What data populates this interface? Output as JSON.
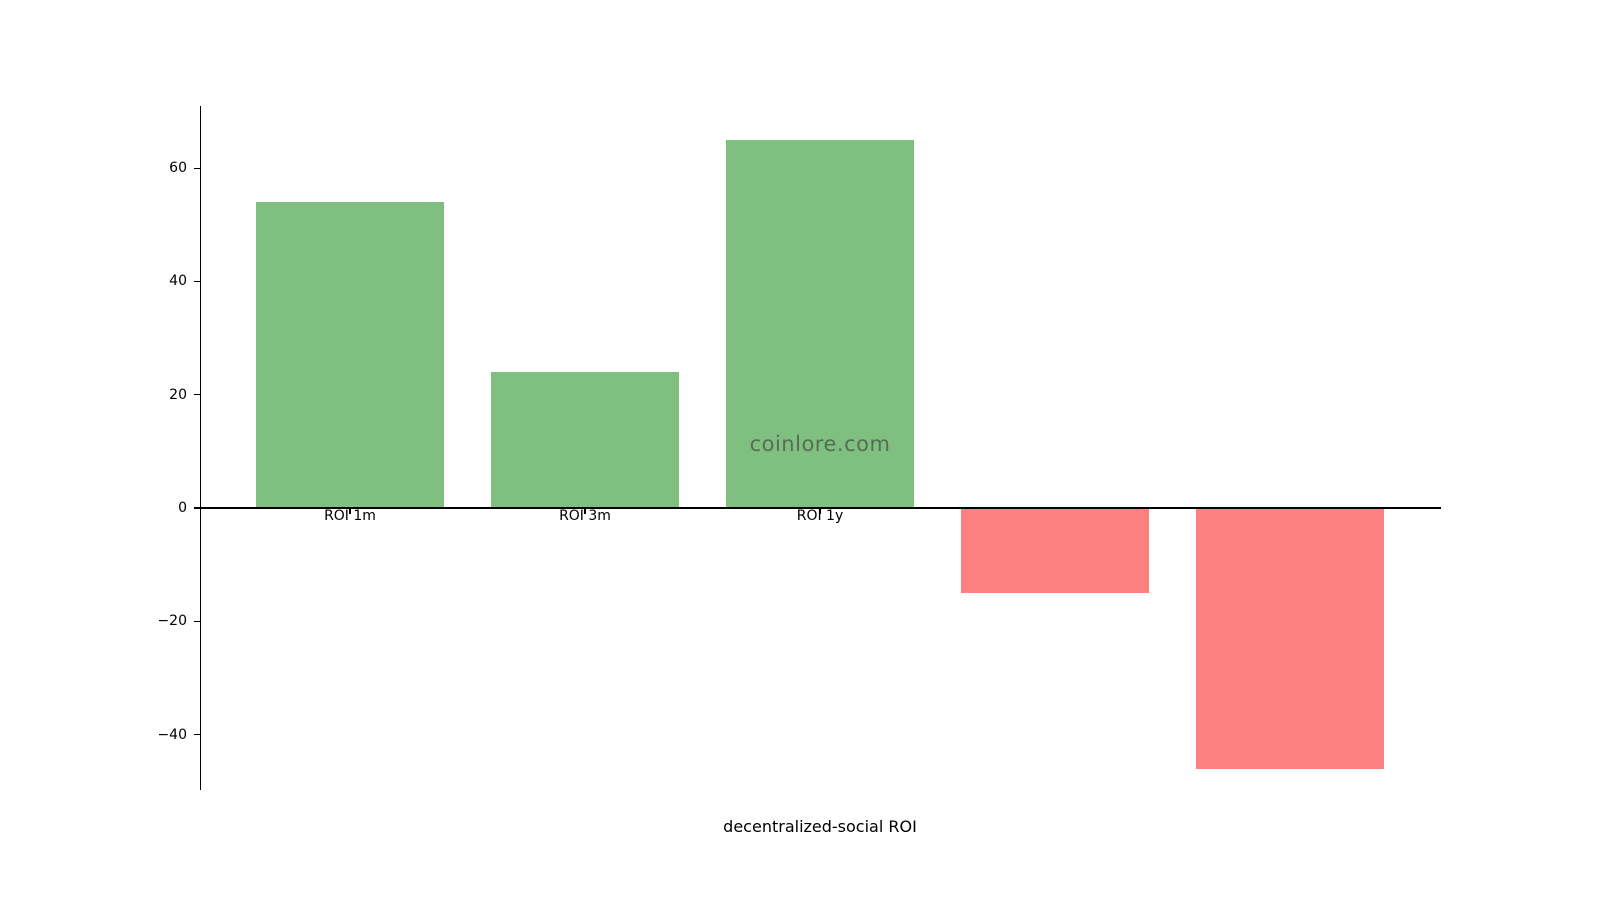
{
  "watermark": {
    "text": "coinlore.com",
    "color": "rgba(60,60,60,0.62)"
  },
  "axis": {
    "xlabel": "decentralized-social ROI",
    "y_ticks": [
      {
        "value": 60,
        "label": "60"
      },
      {
        "value": 40,
        "label": "40"
      },
      {
        "value": 20,
        "label": "20"
      },
      {
        "value": 0,
        "label": "0"
      },
      {
        "value": -20,
        "label": "−20"
      },
      {
        "value": -40,
        "label": "−40"
      }
    ]
  },
  "chart_data": {
    "type": "bar",
    "categories": [
      "ROI 1m",
      "ROI 3m",
      "ROI 1y",
      "",
      ""
    ],
    "values": [
      54,
      24,
      65,
      -15,
      -46
    ],
    "title": "",
    "xlabel": "decentralized-social ROI",
    "ylabel": "",
    "ylim": [
      -51.5,
      70.5
    ],
    "grid": false,
    "legend_position": "none",
    "colors": {
      "positive_bar": "#7fbf7f",
      "negative_bar": "#fc8080",
      "axis_line": "#000000"
    },
    "watermark": "coinlore.com"
  }
}
